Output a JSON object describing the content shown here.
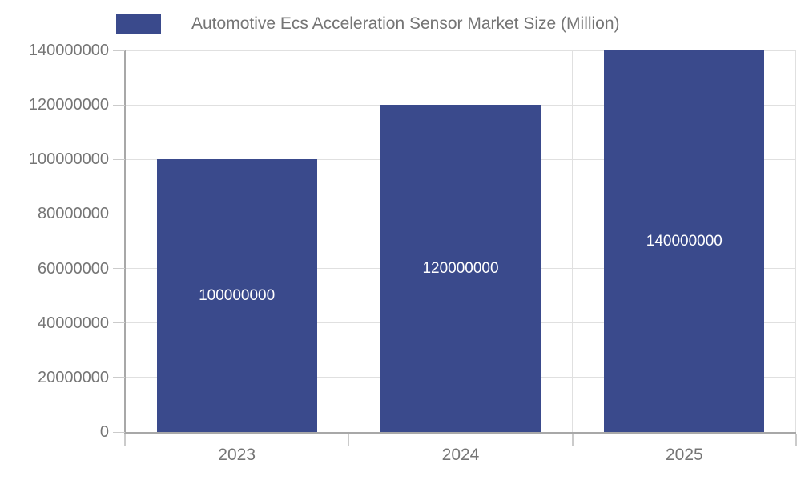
{
  "chart_data": {
    "type": "bar",
    "title": "Automotive Ecs Acceleration Sensor Market Size (Million)",
    "categories": [
      "2023",
      "2024",
      "2025"
    ],
    "series": [
      {
        "name": "Automotive Ecs Acceleration Sensor Market Size (Million)",
        "values": [
          100000000,
          120000000,
          140000000
        ]
      }
    ],
    "data_labels": [
      "100000000",
      "120000000",
      "140000000"
    ],
    "xlabel": "",
    "ylabel": "",
    "ylim": [
      0,
      140000000
    ],
    "ytick_step": 20000000,
    "ytick_labels": [
      "0",
      "20000000",
      "40000000",
      "60000000",
      "80000000",
      "100000000",
      "120000000",
      "140000000"
    ],
    "grid": true,
    "legend_position": "top-left",
    "colors": {
      "bar": "#3A4A8C",
      "data_label": "#FFFFFF",
      "axis_label": "#757575",
      "title_text": "#757575",
      "gridline": "#E0E0E0",
      "axis_line": "#A8A8A8",
      "tick": "#CBCBCB",
      "background": "#FFFFFF"
    }
  }
}
